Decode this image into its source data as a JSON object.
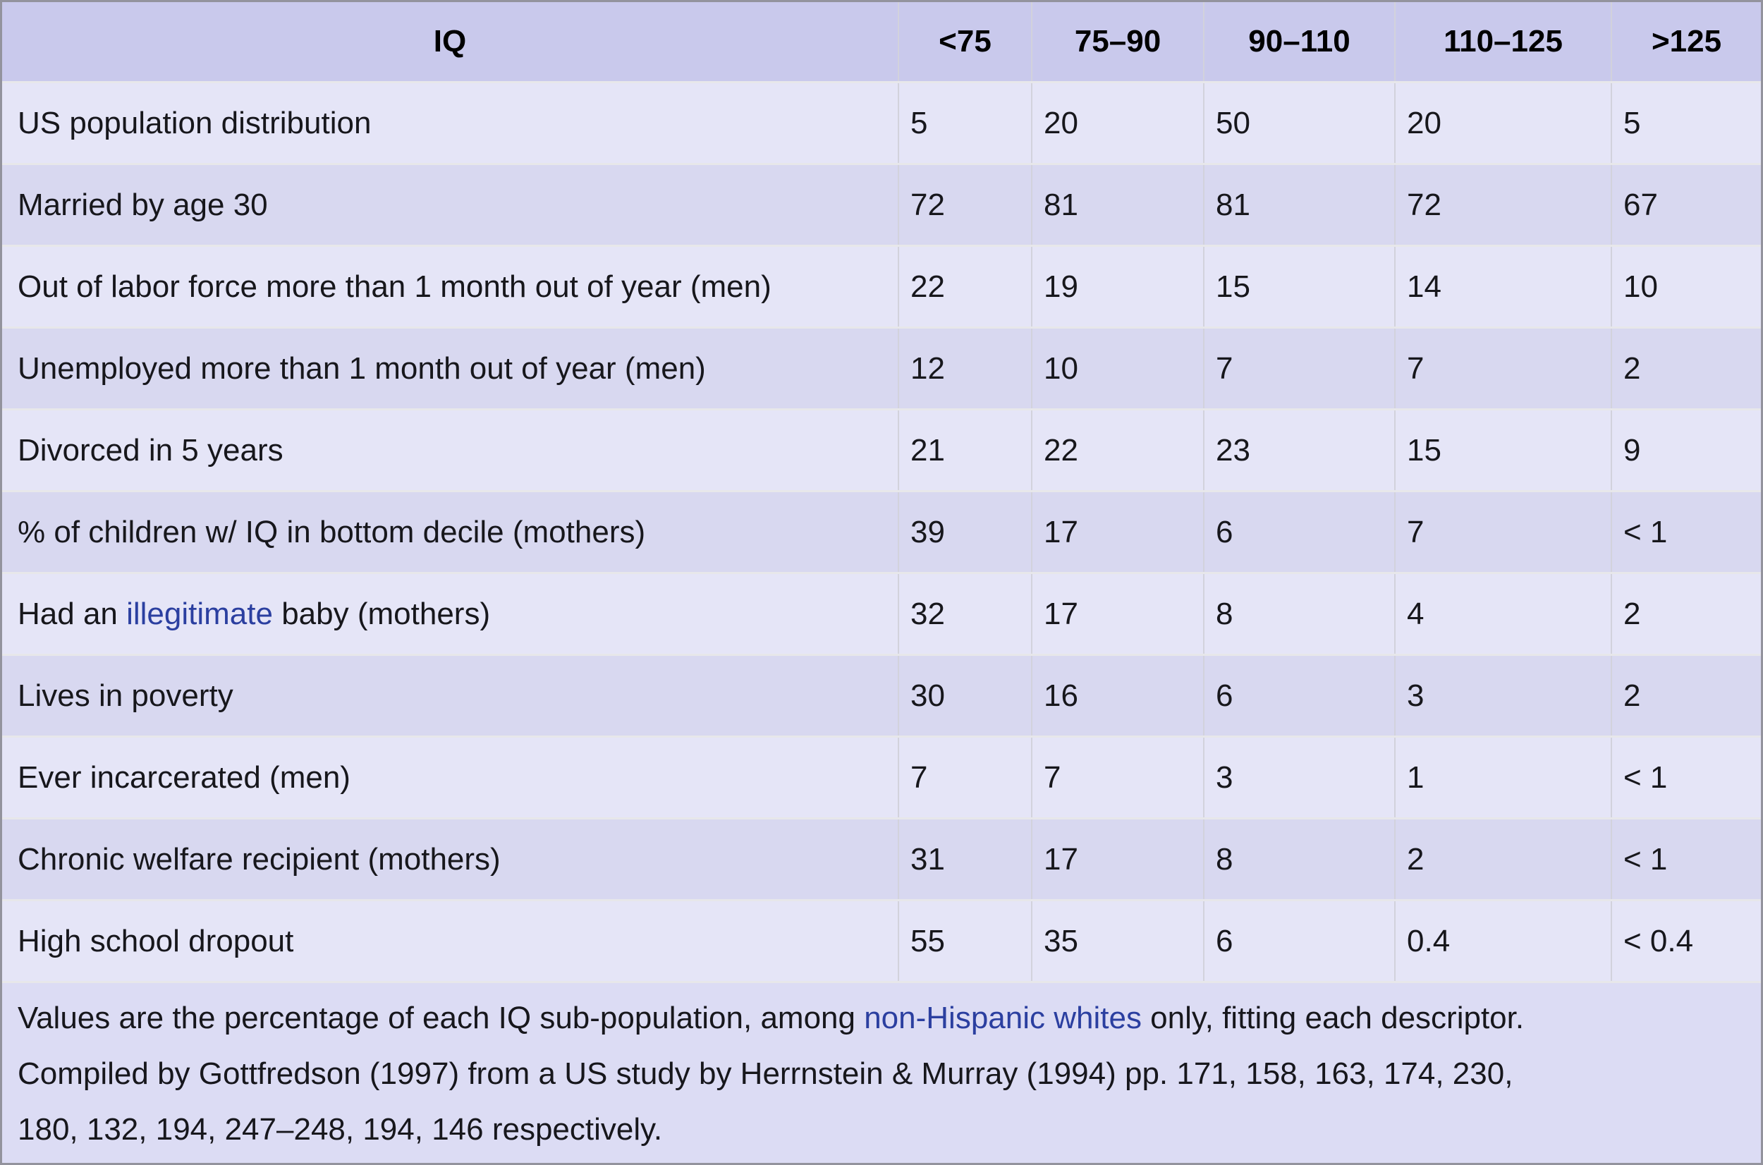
{
  "chart_data": {
    "type": "table",
    "title": "IQ",
    "header": {
      "label": "IQ",
      "columns": [
        "<75",
        "75–90",
        "90–110",
        "110–125",
        ">125"
      ]
    },
    "rows": [
      {
        "label": "US population distribution",
        "values": [
          "5",
          "20",
          "50",
          "20",
          "5"
        ]
      },
      {
        "label": "Married by age 30",
        "values": [
          "72",
          "81",
          "81",
          "72",
          "67"
        ]
      },
      {
        "label": "Out of labor force more than 1 month out of year (men)",
        "values": [
          "22",
          "19",
          "15",
          "14",
          "10"
        ]
      },
      {
        "label": "Unemployed more than 1 month out of year (men)",
        "values": [
          "12",
          "10",
          "7",
          "7",
          "2"
        ]
      },
      {
        "label": "Divorced in 5 years",
        "values": [
          "21",
          "22",
          "23",
          "15",
          "9"
        ]
      },
      {
        "label": "% of children w/ IQ in bottom decile (mothers)",
        "values": [
          "39",
          "17",
          "6",
          "7",
          "< 1"
        ]
      },
      {
        "label_before": "Had an ",
        "link_text": "illegitimate",
        "label_after": " baby (mothers)",
        "values": [
          "32",
          "17",
          "8",
          "4",
          "2"
        ]
      },
      {
        "label": "Lives in poverty",
        "values": [
          "30",
          "16",
          "6",
          "3",
          "2"
        ]
      },
      {
        "label": "Ever incarcerated (men)",
        "values": [
          "7",
          "7",
          "3",
          "1",
          "< 1"
        ]
      },
      {
        "label": "Chronic welfare recipient (mothers)",
        "values": [
          "31",
          "17",
          "8",
          "2",
          "< 1"
        ]
      },
      {
        "label": "High school dropout",
        "values": [
          "55",
          "35",
          "6",
          "0.4",
          "< 0.4"
        ]
      }
    ],
    "footer": {
      "text_before_link": "Values are the percentage of each IQ sub-population, among ",
      "link_text": "non-Hispanic whites",
      "text_after_link": " only, fitting each descriptor.",
      "line2": "Compiled by Gottfredson (1997) from a US study by Herrnstein & Murray (1994) pp. 171, 158, 163, 174, 230,",
      "line3": "180, 132, 194, 247–248, 194, 146 respectively."
    },
    "layout": {
      "legend": "none",
      "grid": "cell-borders",
      "row_striping": "alternating"
    }
  },
  "colors": {
    "header_bg": "#c9c9ec",
    "row_light": "#e5e5f7",
    "row_dark": "#d8d8f0",
    "footer_bg": "#dcdcf4",
    "link": "#2b3fa0",
    "outer_border": "#93939d",
    "text": "#17171c"
  }
}
